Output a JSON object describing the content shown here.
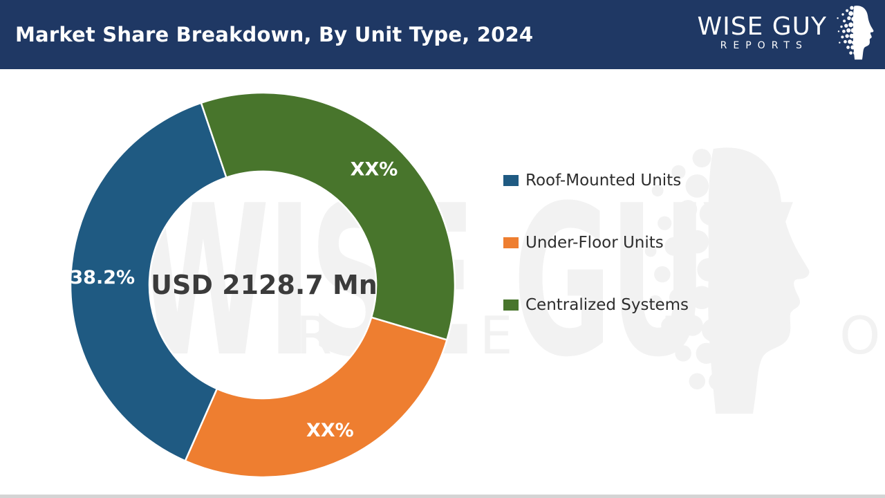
{
  "header": {
    "title": "Market Share Breakdown, By Unit Type, 2024",
    "logo": {
      "line1": "WISE GUY",
      "line2": "REPORTS"
    }
  },
  "chart_data": {
    "type": "pie",
    "subtype": "donut",
    "title": "Market Share Breakdown, By Unit Type, 2024",
    "center_total": "USD 2128.7 Mn",
    "start_angle_deg": 108.7,
    "direction": "counterclockwise",
    "donut_hole_ratio": 0.59,
    "legend_position": "right",
    "segments": [
      {
        "label": "Roof-Mounted Units",
        "value_pct": 38.2,
        "display_label": "38.2%",
        "color": "#1f5a82"
      },
      {
        "label": "Under-Floor Units",
        "value_pct": 27.0,
        "display_label": "XX%",
        "color": "#ee7e30"
      },
      {
        "label": "Centralized Systems",
        "value_pct": 34.8,
        "display_label": "XX%",
        "color": "#48752c"
      }
    ]
  },
  "watermark": {
    "line1": "WISE GUY",
    "line2": "R E P O R T S"
  },
  "colors": {
    "header_bg": "#1f3864",
    "title_text": "#ffffff",
    "center_text": "#3b3b3b",
    "legend_text": "#2d2d2d",
    "watermark": "#f2f2f2",
    "footer_bar": "#d4d4d4",
    "segment_gap": "#ffffff"
  }
}
